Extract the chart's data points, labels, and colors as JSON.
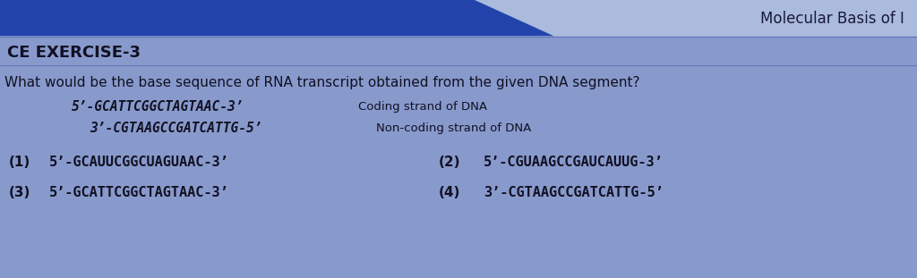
{
  "bg_color": "#8899cc",
  "top_band_color": "#2244aa",
  "header_text": "Molecular Basis of I",
  "header_text_color": "#1a1a3a",
  "header_fontsize": 12,
  "section_title": "CE EXERCISE-3",
  "section_title_fontsize": 13,
  "section_title_color": "#111122",
  "question": "What would be the base sequence of RNA transcript obtained from the given DNA segment?",
  "question_fontsize": 11,
  "question_color": "#111122",
  "coding_strand": "5’-GCATTCGGCTAGTAAC-3’",
  "coding_label": "Coding strand of DNA",
  "noncoding_strand": "3’-CGTAAGCCGATCATTG-5’",
  "noncoding_label": "Non-coding strand of DNA",
  "strand_color": "#111122",
  "strand_fontsize": 10.5,
  "label_fontsize": 9.5,
  "separator_color": "#6677bb",
  "options": [
    {
      "num": "(1)",
      "text": "5’-GCAUUCGGCUAGUAAC-3’"
    },
    {
      "num": "(3)",
      "text": "5’-GCATTCGGCTAGTAAC-3’"
    },
    {
      "num": "(2)",
      "text": "5’-CGUAAGCCGAUCAUUG-3’"
    },
    {
      "num": "(4)",
      "text": "3’-CGTAAGCCGATCATTG-5’"
    }
  ],
  "option_fontsize": 11,
  "option_color": "#111122",
  "lighter_panel_color": "#aabbdd"
}
